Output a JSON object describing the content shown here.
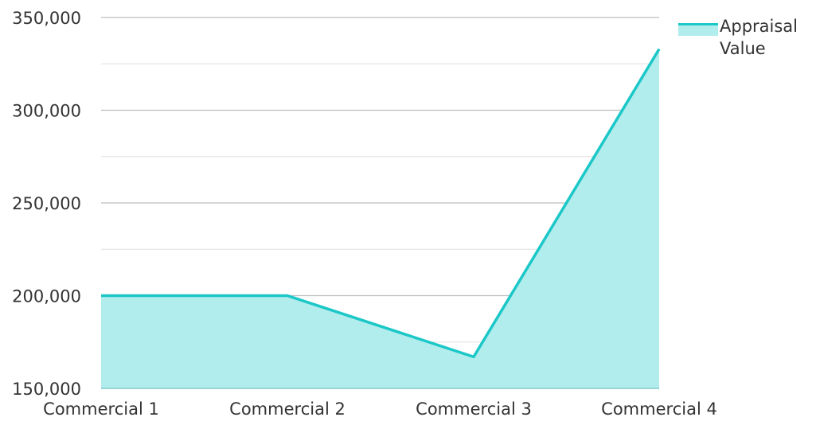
{
  "chart_data": {
    "type": "area",
    "title": "",
    "xlabel": "",
    "ylabel": "",
    "categories": [
      "Commercial 1",
      "Commercial 2",
      "Commercial 3",
      "Commercial 4"
    ],
    "series": [
      {
        "name": "Appraisal Value",
        "values": [
          200000,
          200000,
          167000,
          333000
        ]
      }
    ],
    "ylim": [
      150000,
      350000
    ],
    "yticks": [
      150000,
      200000,
      250000,
      300000,
      350000
    ],
    "ytick_labels": [
      "150,000",
      "200,000",
      "250,000",
      "300,000",
      "350,000"
    ],
    "grid": true,
    "legend_position": "top-right",
    "colors": {
      "line": "#1cc7c7",
      "fill": "#b2eded",
      "grid_major": "#bdbdbd",
      "grid_minor": "#e6e6e6",
      "axis": "#80cccc"
    }
  },
  "legend": {
    "label": "Appraisal Value"
  }
}
